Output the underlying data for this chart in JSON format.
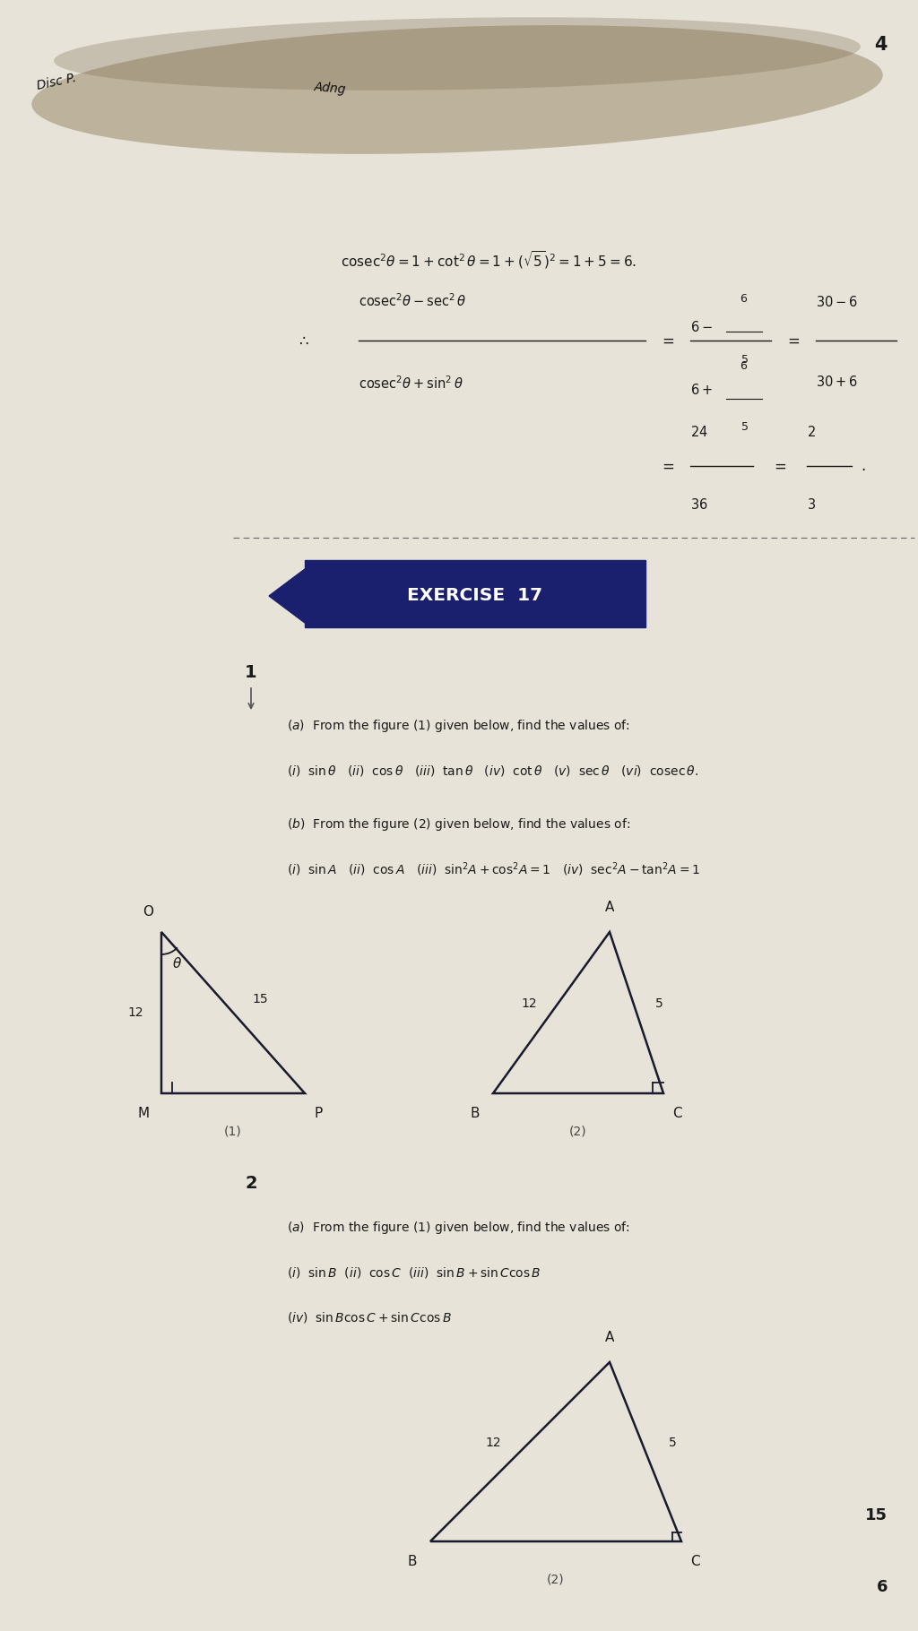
{
  "page_bg": "#e8e3d8",
  "dark_bg": "#c8bfaa",
  "title_bg": "#1a1f6e",
  "title_text": "EXERCISE  17",
  "page_num": "4",
  "page_num2": "15",
  "page_num3": "6",
  "handwrite1": "Disc P.",
  "handwrite2": "Adng",
  "line_cosec": "cosec²θ = 1 + cot²θ = 1 + (√5)² = 1 + 5 = 6.",
  "therefore_sym": "∴",
  "frac_num1": "cosec²θ − sec²θ",
  "frac_den1": "cosec²θ + sin²θ",
  "eq1_num": "6 −",
  "eq1_sub_num": "6",
  "eq1_sub_den": "5",
  "eq1_den": "6 +",
  "eq2_num": "30 − 6",
  "eq2_den": "30 + 6",
  "eq3_num": "24",
  "eq3_den": "36",
  "eq4_num": "2",
  "eq4_den": "3",
  "ex1_num": "1",
  "ex1a_text": "(a)  From the figure (1) given below, find the values of:",
  "ex1a_parts": "(i)  sin θ    (ii)  cos θ    (iii)  tan θ    (iv)  cot θ    (v)  sec θ    (vi)  cosec θ.",
  "ex1b_text": "(b)  From the figure (2) given below, find the values of:",
  "ex1b_parts": "(i)  sin A    (ii)  cos A    (iii)  sin² A + cos² A = 1    (iv)  sec² A − tan² A.",
  "fig1_label": "(1)",
  "fig1_O": "O",
  "fig1_M": "M",
  "fig1_P": "P",
  "fig1_theta": "θ",
  "fig1_side12": "12",
  "fig1_side15": "15",
  "fig2_label": "(2)",
  "fig2_A": "A",
  "fig2_B": "B",
  "fig2_C": "C",
  "fig2_side12": "12",
  "fig2_side5": "5",
  "ex2_num": "2",
  "ex2a_text": "(a)  From the figure (1) given below, find the values of:",
  "ex2a_parts": "(i)  sin B  (ii)  cos C  (iii)  sin B + sin C cos B",
  "ex2a_parts2": "(iv)  sin B cos C + sin C cos B",
  "text_color": "#1a1a1a",
  "line_color": "#1a1a1a",
  "tri_color": "#1a1a2e"
}
